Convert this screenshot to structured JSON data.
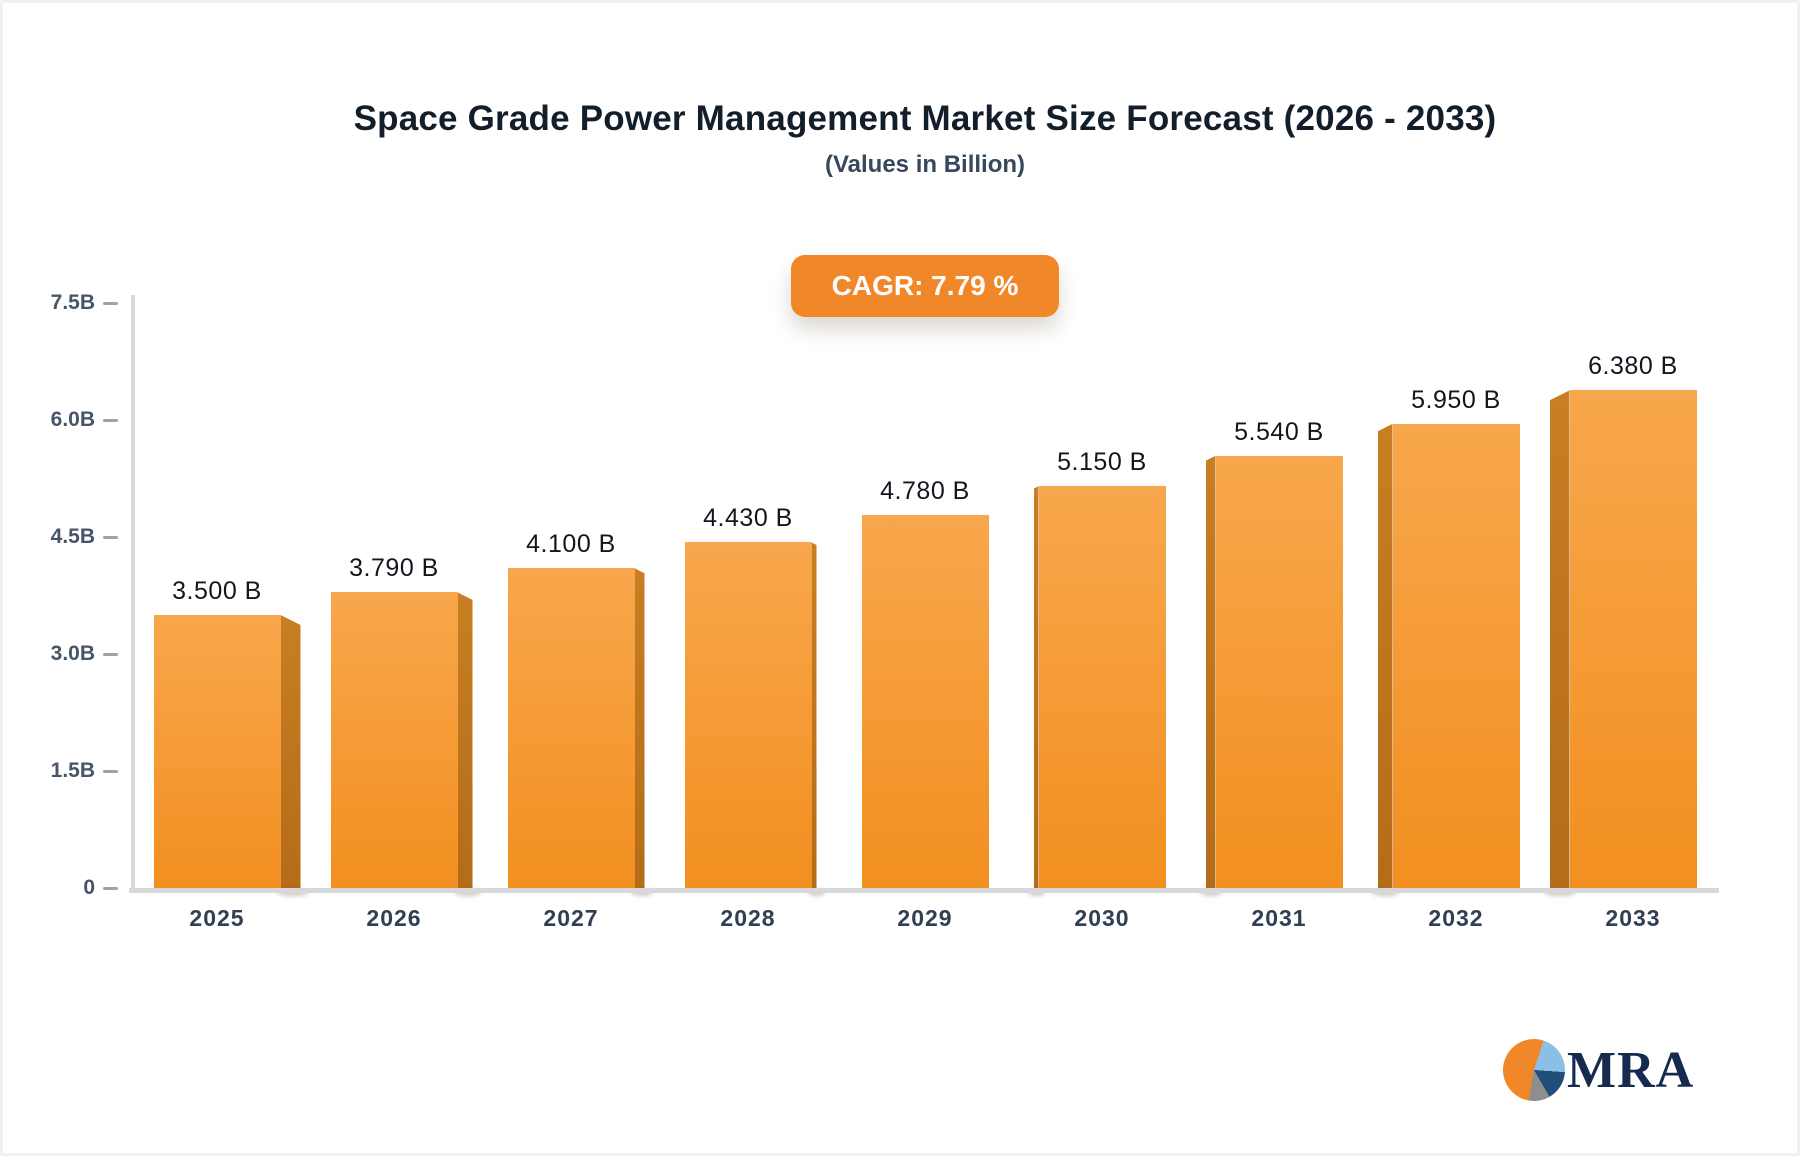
{
  "header": {
    "title": "Space Grade Power Management Market Size Forecast (2026 - 2033)",
    "subtitle": "(Values in Billion)"
  },
  "badge": {
    "label": "CAGR: 7.79 %"
  },
  "logo": {
    "text": "MRA"
  },
  "colors": {
    "bar_top": "#f8a74c",
    "bar_bottom": "#f28f20",
    "bar_side_top": "#c87e22",
    "bar_side_bottom": "#b56c19",
    "accent": "#f0882a",
    "axis_line": "#d8dade",
    "tick_dash": "#9aa3ad",
    "title_text": "#131e2b",
    "subtitle_text": "#37485c",
    "value_text": "#12171e",
    "ytick_text": "#475569",
    "xtick_text": "#2f4054",
    "logo_navy": "#16294e",
    "logo_lightblue": "#8bbfe3",
    "logo_darkblue": "#1f4e79",
    "logo_gray": "#8e8e8e"
  },
  "chart_data": {
    "type": "bar",
    "title": "Space Grade Power Management Market Size Forecast (2026 - 2033)",
    "subtitle": "(Values in Billion)",
    "unit": "Billion",
    "cagr_percent": 7.79,
    "categories": [
      "2025",
      "2026",
      "2027",
      "2028",
      "2029",
      "2030",
      "2031",
      "2032",
      "2033"
    ],
    "values": [
      3.5,
      3.79,
      4.1,
      4.43,
      4.78,
      5.15,
      5.54,
      5.95,
      6.38
    ],
    "value_labels": [
      "3.500 B",
      "3.790 B",
      "4.100 B",
      "4.430 B",
      "4.780 B",
      "5.150 B",
      "5.540 B",
      "5.950 B",
      "6.380 B"
    ],
    "xlabel": "",
    "ylabel": "",
    "ylim": [
      0,
      7.5
    ],
    "yticks": [
      {
        "label": "0",
        "value": 0
      },
      {
        "label": "1.5B",
        "value": 1.5
      },
      {
        "label": "3.0B",
        "value": 3.0
      },
      {
        "label": "4.5B",
        "value": 4.5
      },
      {
        "label": "6.0B",
        "value": 6.0
      },
      {
        "label": "7.5B",
        "value": 7.5
      }
    ],
    "grid": false,
    "legend": false
  }
}
